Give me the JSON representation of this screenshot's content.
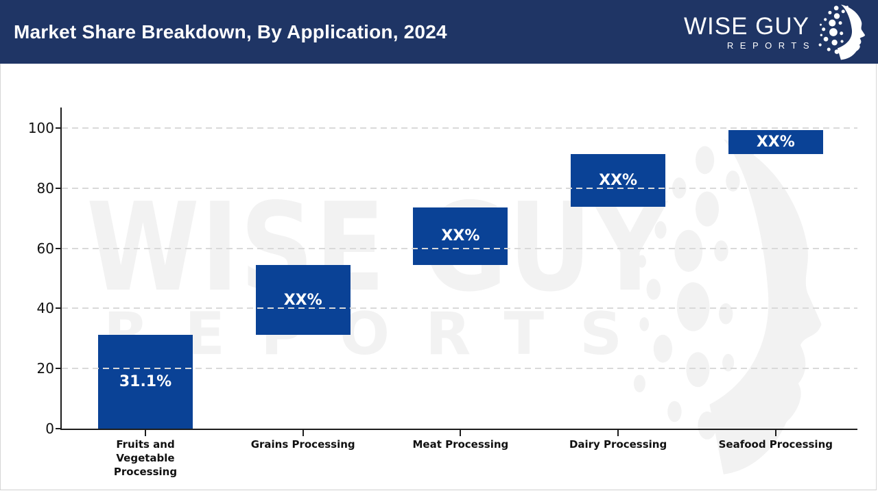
{
  "header": {
    "title": "Market Share Breakdown, By Application, 2024",
    "logo_line1": "WISE GUY",
    "logo_line2": "REPORTS",
    "bg_color": "#1f3565"
  },
  "watermark": {
    "line1": "WISE GUY",
    "line2": "REPORTS"
  },
  "chart_data": {
    "type": "bar",
    "subtype": "waterfall",
    "title": "Market Share Breakdown, By Application, 2024",
    "categories": [
      "Fruits and Vegetable Processing",
      "Grains Processing",
      "Meat Processing",
      "Dairy Processing",
      "Seafood Processing"
    ],
    "category_lines": [
      [
        "Fruits and",
        "Vegetable",
        "Processing"
      ],
      [
        "Grains Processing"
      ],
      [
        "Meat Processing"
      ],
      [
        "Dairy Processing"
      ],
      [
        "Seafood Processing"
      ]
    ],
    "segments": [
      {
        "category": "Fruits and Vegetable Processing",
        "start": 0,
        "end": 31.1,
        "label": "31.1%"
      },
      {
        "category": "Grains Processing",
        "start": 31.1,
        "end": 54.4,
        "label": "XX%"
      },
      {
        "category": "Meat Processing",
        "start": 54.5,
        "end": 73.6,
        "label": "XX%"
      },
      {
        "category": "Dairy Processing",
        "start": 73.9,
        "end": 91.4,
        "label": "XX%"
      },
      {
        "category": "Seafood Processing",
        "start": 91.3,
        "end": 99.3,
        "label": "XX%"
      }
    ],
    "yticks": [
      0,
      20,
      40,
      60,
      80,
      100
    ],
    "ylim": [
      0,
      105.2
    ],
    "grid": "horizontal dashed, drawn above bars",
    "legend": "none",
    "bar_color": "#0a4296",
    "grid_color": "#d9d9d9",
    "axis_color": "#1c1c1c"
  }
}
